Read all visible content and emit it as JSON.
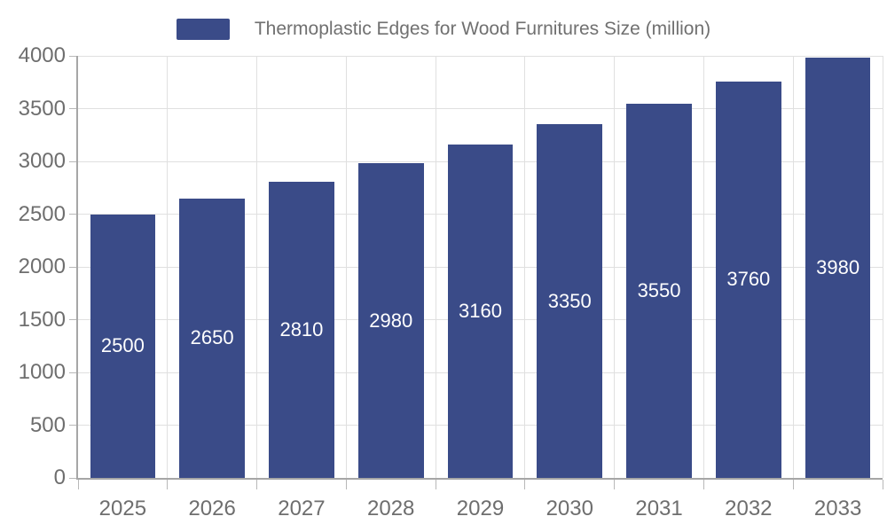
{
  "legend": {
    "label": "Thermoplastic Edges for Wood Furnitures Size (million)"
  },
  "chart_data": {
    "type": "bar",
    "title": "Thermoplastic Edges for Wood Furnitures Size (million)",
    "series_name": "Thermoplastic Edges for Wood Furnitures Size (million)",
    "categories": [
      "2025",
      "2026",
      "2027",
      "2028",
      "2029",
      "2030",
      "2031",
      "2032",
      "2033"
    ],
    "values": [
      2500,
      2650,
      2810,
      2980,
      3160,
      3350,
      3550,
      3760,
      3980
    ],
    "value_labels_shown": true,
    "xlabel": "",
    "ylabel": "",
    "ylim": [
      0,
      4000
    ],
    "ytick_step": 500,
    "yticks": [
      0,
      500,
      1000,
      1500,
      2000,
      2500,
      3000,
      3500,
      4000
    ],
    "grid": true,
    "legend_position": "top-center",
    "colors": {
      "bar": "#3a4b88",
      "value_label": "#ffffff",
      "axis_text": "#6e6e6e",
      "legend_text": "#707070",
      "axis_line": "#a6a6a6",
      "tick_line": "#b8b8b8",
      "grid_line": "#e0e0e0",
      "background": "#ffffff"
    }
  }
}
